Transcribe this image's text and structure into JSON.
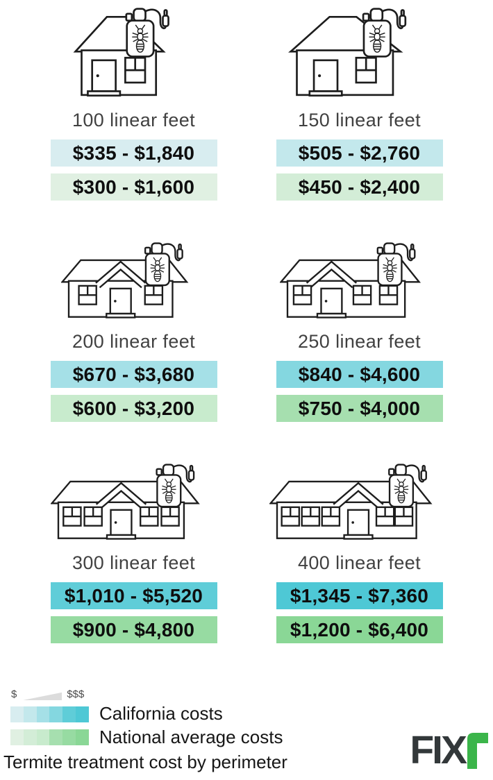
{
  "cards": [
    {
      "label": "100 linear feet",
      "california": "$335 - $1,840",
      "national": "$300 - $1,600",
      "ca_color": "#d8edf0",
      "na_color": "#e0f0e2"
    },
    {
      "label": "150 linear feet",
      "california": "$505 - $2,760",
      "national": "$450 - $2,400",
      "ca_color": "#c3e8ec",
      "na_color": "#d3edd7"
    },
    {
      "label": "200 linear feet",
      "california": "$670 - $3,680",
      "national": "$600 - $3,200",
      "ca_color": "#a5e0e7",
      "na_color": "#c8ebcd"
    },
    {
      "label": "250 linear feet",
      "california": "$840 - $4,600",
      "national": "$750 - $4,000",
      "ca_color": "#84d7e0",
      "na_color": "#a6dfaf"
    },
    {
      "label": "300 linear feet",
      "california": "$1,010 - $5,520",
      "national": "$900 - $4,800",
      "ca_color": "#5fcdd8",
      "na_color": "#97dba2"
    },
    {
      "label": "400 linear feet",
      "california": "$1,345 - $7,360",
      "national": "$1,200 - $6,400",
      "ca_color": "#4ec8d5",
      "na_color": "#8ad796"
    }
  ],
  "legend": {
    "low_symbol": "$",
    "high_symbol": "$$$",
    "california_label": "California costs",
    "national_label": "National average costs",
    "ca_gradient": [
      "#d8edf0",
      "#c3e8ec",
      "#a5e0e7",
      "#84d7e0",
      "#5fcdd8",
      "#4ec8d5"
    ],
    "na_gradient": [
      "#e0f0e2",
      "#d3edd7",
      "#c8ebcd",
      "#a6dfaf",
      "#97dba2",
      "#8ad796"
    ],
    "wedge_color": "#dcdcdc"
  },
  "caption": "Termite treatment cost by perimeter",
  "brand": {
    "text": "FIX",
    "text_color": "#33383a",
    "r_color": "#3bb54a"
  },
  "icons": {
    "house": "house-outline-icon (CSS/SVG line art)",
    "sprayer": "termite-sprayer-icon (SVG bottle with hose)",
    "termite": "termite-icon (SVG insect inside bottle)",
    "wedge": "price-scale-wedge-icon (gray triangle ramp)"
  },
  "chart_data": {
    "type": "table",
    "title": "Termite treatment cost by perimeter",
    "categories": [
      "100 linear feet",
      "150 linear feet",
      "200 linear feet",
      "250 linear feet",
      "300 linear feet",
      "400 linear feet"
    ],
    "series": [
      {
        "name": "California costs",
        "values": [
          "$335 - $1,840",
          "$505 - $2,760",
          "$670 - $3,680",
          "$840 - $4,600",
          "$1,010 - $5,520",
          "$1,345 - $7,360"
        ],
        "low": [
          335,
          505,
          670,
          840,
          1010,
          1345
        ],
        "high": [
          1840,
          2760,
          3680,
          4600,
          5520,
          7360
        ],
        "color_scale": [
          "#d8edf0",
          "#4ec8d5"
        ]
      },
      {
        "name": "National average costs",
        "values": [
          "$300 - $1,600",
          "$450 - $2,400",
          "$600 - $3,200",
          "$750 - $4,000",
          "$900 - $4,800",
          "$1,200 - $6,400"
        ],
        "low": [
          300,
          450,
          600,
          750,
          900,
          1200
        ],
        "high": [
          1600,
          2400,
          3200,
          4000,
          4800,
          6400
        ],
        "color_scale": [
          "#e0f0e2",
          "#8ad796"
        ]
      }
    ],
    "legend_position": "bottom-left",
    "unit": "USD"
  }
}
